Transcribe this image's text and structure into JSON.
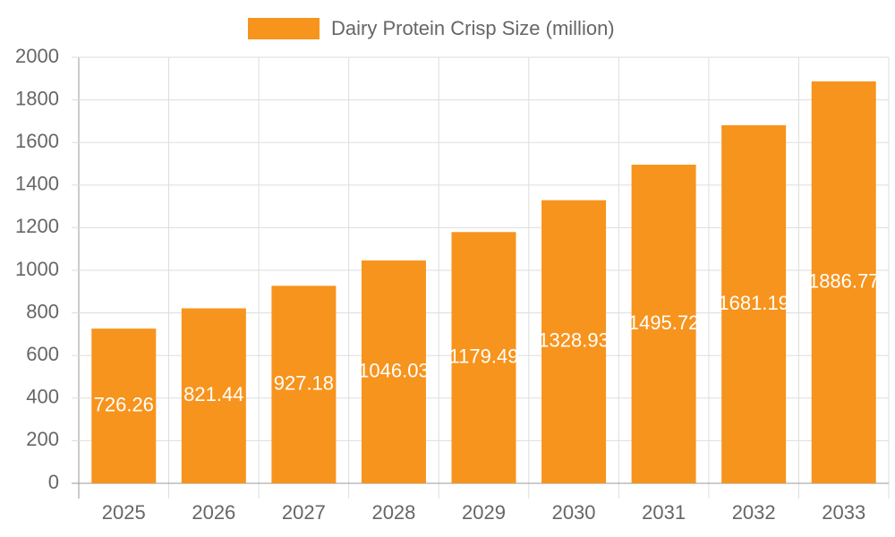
{
  "chart_data": {
    "type": "bar",
    "categories": [
      "2025",
      "2026",
      "2027",
      "2028",
      "2029",
      "2030",
      "2031",
      "2032",
      "2033"
    ],
    "series": [
      {
        "name": "Dairy Protein Crisp Size (million)",
        "color": "#f7941d",
        "values": [
          726.26,
          821.44,
          927.18,
          1046.03,
          1179.49,
          1328.93,
          1495.72,
          1681.19,
          1886.77
        ]
      }
    ],
    "ylim": [
      0,
      2000
    ],
    "yticks": [
      0,
      200,
      400,
      600,
      800,
      1000,
      1200,
      1400,
      1600,
      1800,
      2000
    ],
    "grid": true,
    "legend": "top"
  }
}
